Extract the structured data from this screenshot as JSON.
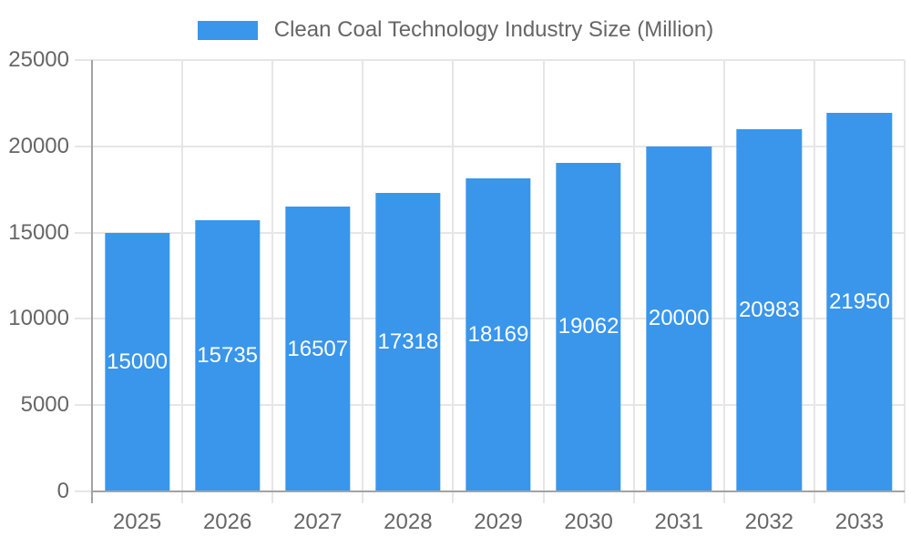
{
  "legend": {
    "label": "Clean Coal Technology Industry Size (Million)"
  },
  "colors": {
    "bar": "#3996eb",
    "grid": "#e6e6e6",
    "axis": "#a3a3a3",
    "text": "#666666",
    "value_label": "#ffffff",
    "background": "#ffffff"
  },
  "chart_data": {
    "type": "bar",
    "title": "Clean Coal Technology Industry Size (Million)",
    "categories": [
      "2025",
      "2026",
      "2027",
      "2028",
      "2029",
      "2030",
      "2031",
      "2032",
      "2033"
    ],
    "series": [
      {
        "name": "Clean Coal Technology Industry Size (Million)",
        "values": [
          15000,
          15735,
          16507,
          17318,
          18169,
          19062,
          20000,
          20983,
          21950
        ]
      }
    ],
    "value_labels": [
      "15000",
      "15735",
      "16507",
      "17318",
      "18169",
      "19062",
      "20000",
      "20983",
      "21950"
    ],
    "xlabel": "",
    "ylabel": "",
    "ylim": [
      0,
      25000
    ],
    "yticks": [
      0,
      5000,
      10000,
      15000,
      20000,
      25000
    ],
    "grid": true,
    "legend_position": "top",
    "value_labels_position": "center-inside-bar"
  }
}
